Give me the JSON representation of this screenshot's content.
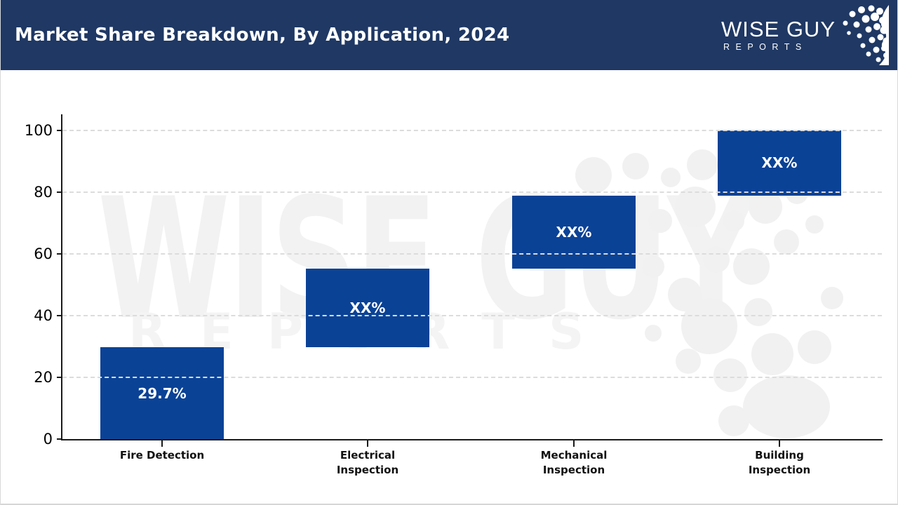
{
  "header": {
    "title": "Market Share Breakdown, By Application, 2024",
    "logo": {
      "name_line": "WISE GUY",
      "sub_line": "REPORTS"
    },
    "bg_color": "#1f3864"
  },
  "watermark": {
    "line1": "WISE GUY",
    "line2": "REPORTS"
  },
  "chart_data": {
    "type": "bar",
    "subtype": "waterfall-floating-bars",
    "title": "Market Share Breakdown, By Application, 2024",
    "categories": [
      "Fire Detection",
      "Electrical Inspection",
      "Mechanical Inspection",
      "Building Inspection"
    ],
    "segments": [
      {
        "category": "Fire Detection",
        "start": 0,
        "end": 29.7,
        "label": "29.7%"
      },
      {
        "category": "Electrical Inspection",
        "start": 29.7,
        "end": 55.2,
        "label": "XX%"
      },
      {
        "category": "Mechanical Inspection",
        "start": 55.2,
        "end": 78.9,
        "label": "XX%"
      },
      {
        "category": "Building Inspection",
        "start": 78.9,
        "end": 100,
        "label": "XX%"
      }
    ],
    "y_ticks": [
      0,
      20,
      40,
      60,
      80,
      100
    ],
    "ylim": [
      0,
      105
    ],
    "xlabel": "",
    "ylabel": "",
    "grid": "horizontal-dashed",
    "legend": "none",
    "bar_color": "#0a4296",
    "bar_label_color": "#ffffff",
    "axis_color": "#1a1a1a",
    "gridline_color": "#dcdcdc"
  }
}
